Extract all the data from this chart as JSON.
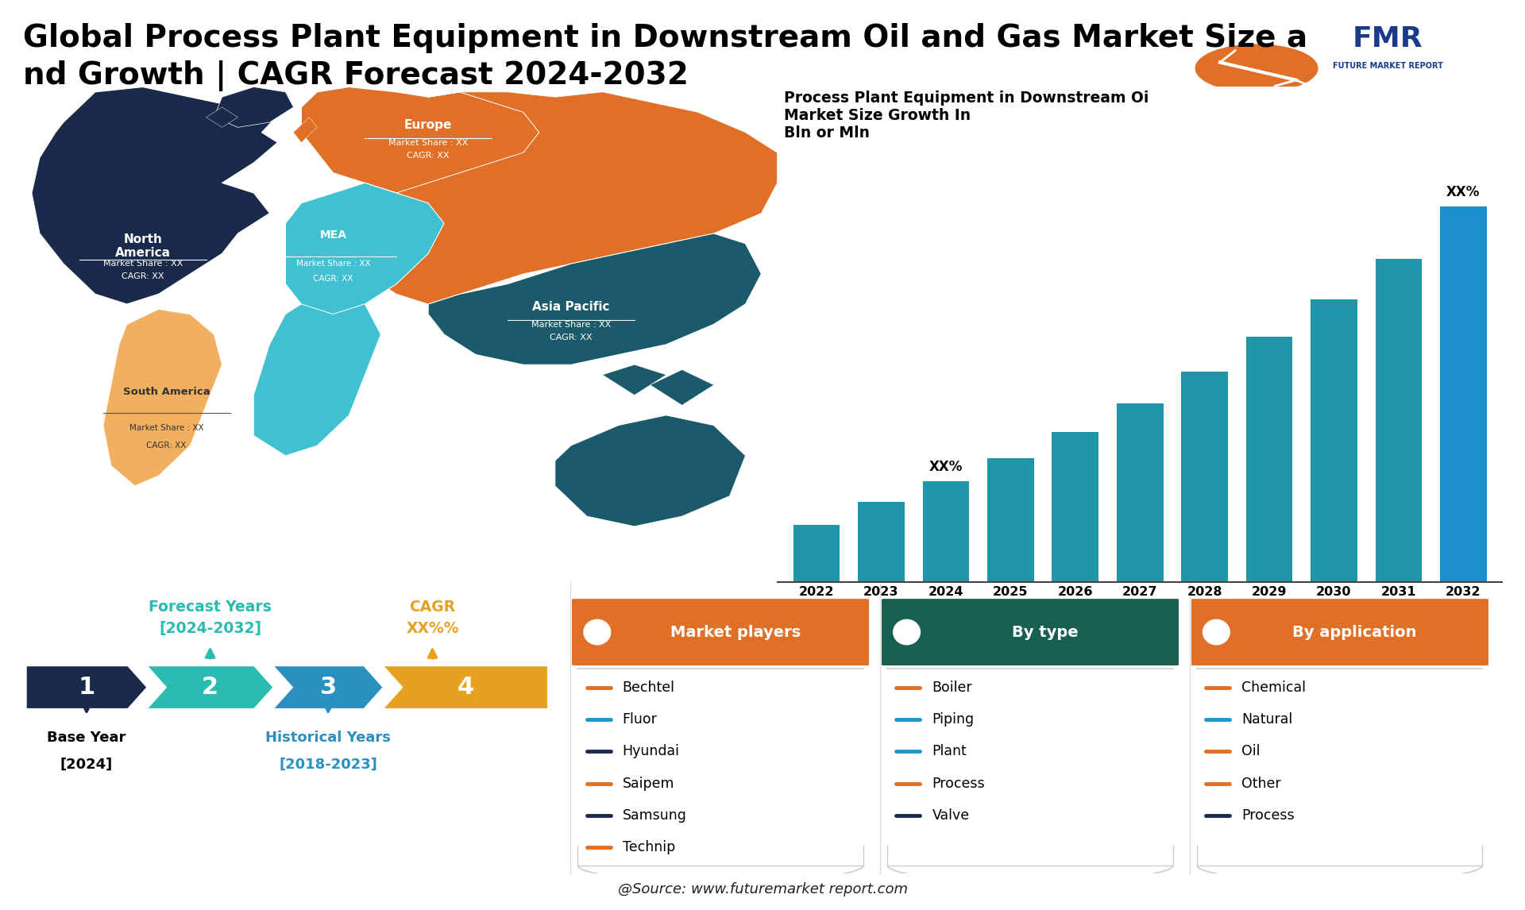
{
  "title": "Global Process Plant Equipment in Downstream Oil and Gas Market Size a\nnd Growth | CAGR Forecast 2024-2032",
  "title_fontsize": 28,
  "title_color": "#000000",
  "bg_color": "#ffffff",
  "chart_title": "Process Plant Equipment in Downstream Oi\nMarket Size Growth In\nBln or Mln",
  "bar_years": [
    "2022",
    "2023",
    "2024",
    "2025",
    "2026",
    "2027",
    "2028",
    "2029",
    "2030",
    "2031",
    "2032"
  ],
  "bar_heights": [
    2.0,
    2.8,
    3.5,
    4.3,
    5.2,
    6.2,
    7.3,
    8.5,
    9.8,
    11.2,
    13.0
  ],
  "bar_color": "#2196a8",
  "bar_label_2024": "XX%",
  "bar_label_2032": "XX%",
  "na_color": "#1a2a4a",
  "eu_color": "#e07028",
  "ap_color": "#1a5a6a",
  "mea_color": "#40c0d0",
  "sa_color": "#f0b060",
  "forecast_color": "#2abcb0",
  "cagr_color": "#e8a020",
  "seg_colors": [
    "#1a2a4a",
    "#2abcb0",
    "#2a90c0",
    "#e8a020"
  ],
  "pill_orange": "#e07028",
  "pill_teal": "#1a6050",
  "market_players": [
    "Bechtel",
    "Fluor",
    "Hyundai",
    "Saipem",
    "Samsung",
    "Technip"
  ],
  "by_type": [
    "Boiler",
    "Piping",
    "Plant",
    "Process",
    "Valve"
  ],
  "by_application": [
    "Chemical",
    "Natural",
    "Oil",
    "Other",
    "Process"
  ],
  "dash_colors_mp": [
    "#e07028",
    "#2196c8",
    "#1a2a4a",
    "#e07028",
    "#1a2a4a",
    "#e07028"
  ],
  "dash_colors_bt": [
    "#e07028",
    "#2196c8",
    "#2196c8",
    "#e07028",
    "#1a2a4a"
  ],
  "dash_colors_ba": [
    "#e07028",
    "#2196c8",
    "#e07028",
    "#e07028",
    "#1a2a4a"
  ],
  "source_text": "@Source: www.futuremarket report.com",
  "fmr_blue": "#1a3a8a"
}
